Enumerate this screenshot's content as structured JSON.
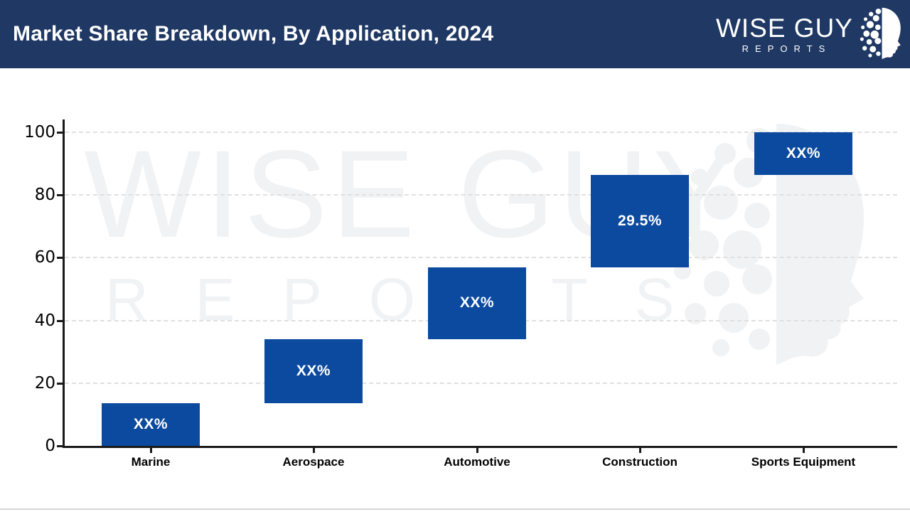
{
  "header": {
    "title": "Market Share Breakdown, By Application, 2024",
    "logo": {
      "line1": "WISE GUY",
      "line2": "REPORTS"
    }
  },
  "watermark": {
    "line1": "WISE GUY",
    "line2": "REPORTS"
  },
  "colors": {
    "header_bg": "#1f3864",
    "bar_fill": "#0b4a9f",
    "bar_label_text": "#ffffff",
    "gridline": "#e0e0e0",
    "axis": "#1a1a1a",
    "watermark": "#f1f2f4"
  },
  "chart_data": {
    "type": "bar",
    "subtype": "waterfall",
    "title": "Market Share Breakdown, By Application, 2024",
    "categories": [
      "Marine",
      "Aerospace",
      "Automotive",
      "Construction",
      "Sports Equipment"
    ],
    "segments": [
      {
        "category": "Marine",
        "start": 0,
        "end": 13.5,
        "label": "XX%"
      },
      {
        "category": "Aerospace",
        "start": 13.5,
        "end": 34,
        "label": "XX%"
      },
      {
        "category": "Automotive",
        "start": 34,
        "end": 57,
        "label": "XX%"
      },
      {
        "category": "Construction",
        "start": 57,
        "end": 86.5,
        "label": "29.5%",
        "value": 29.5
      },
      {
        "category": "Sports Equipment",
        "start": 86.5,
        "end": 100,
        "label": "XX%"
      }
    ],
    "yticks": [
      0,
      20,
      40,
      60,
      80,
      100
    ],
    "ylim": [
      0,
      105
    ],
    "xlabel": "",
    "ylabel": "",
    "grid": "horizontal-dashed",
    "legend": "none"
  }
}
